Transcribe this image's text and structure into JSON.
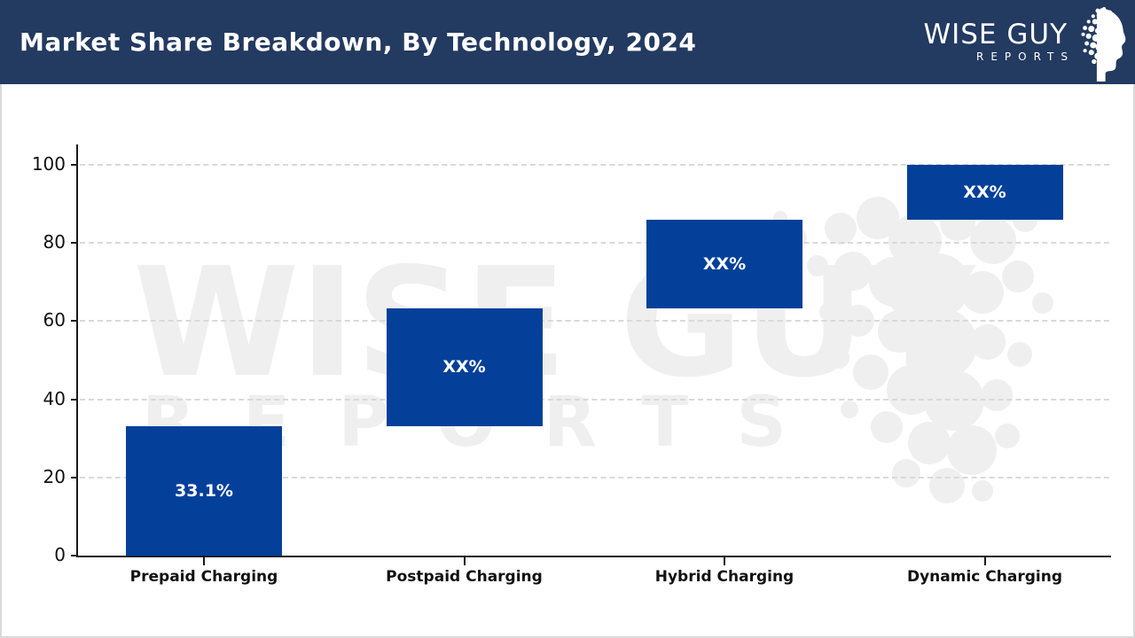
{
  "header": {
    "title": "Market Share Breakdown, By Technology, 2024",
    "bg_color": "#233a61",
    "logo": {
      "wordmark": "WISE GUY",
      "subtext": "REPORTS"
    }
  },
  "watermark": {
    "line1": "WISE GUY",
    "line2": "REPORTS"
  },
  "chart_data": {
    "type": "bar",
    "subtype": "waterfall",
    "title": "Market Share Breakdown, By Technology, 2024",
    "categories": [
      "Prepaid Charging",
      "Postpaid Charging",
      "Hybrid Charging",
      "Dynamic Charging"
    ],
    "segments": [
      {
        "category": "Prepaid Charging",
        "start": 0,
        "end": 33.1,
        "label": "33.1%"
      },
      {
        "category": "Postpaid Charging",
        "start": 33.1,
        "end": 63.3,
        "label": "XX%"
      },
      {
        "category": "Hybrid Charging",
        "start": 63.3,
        "end": 85.9,
        "label": "XX%"
      },
      {
        "category": "Dynamic Charging",
        "start": 85.9,
        "end": 100.0,
        "label": "XX%"
      }
    ],
    "xlabel": "",
    "ylabel": "",
    "ylim": [
      0,
      105
    ],
    "yticks": [
      0,
      20,
      40,
      60,
      80,
      100
    ],
    "grid": "horizontal dashed",
    "legend": "none",
    "bar_color": "#04409a",
    "bar_label_color": "#ffffff",
    "axis_color": "#1a1a1a"
  }
}
